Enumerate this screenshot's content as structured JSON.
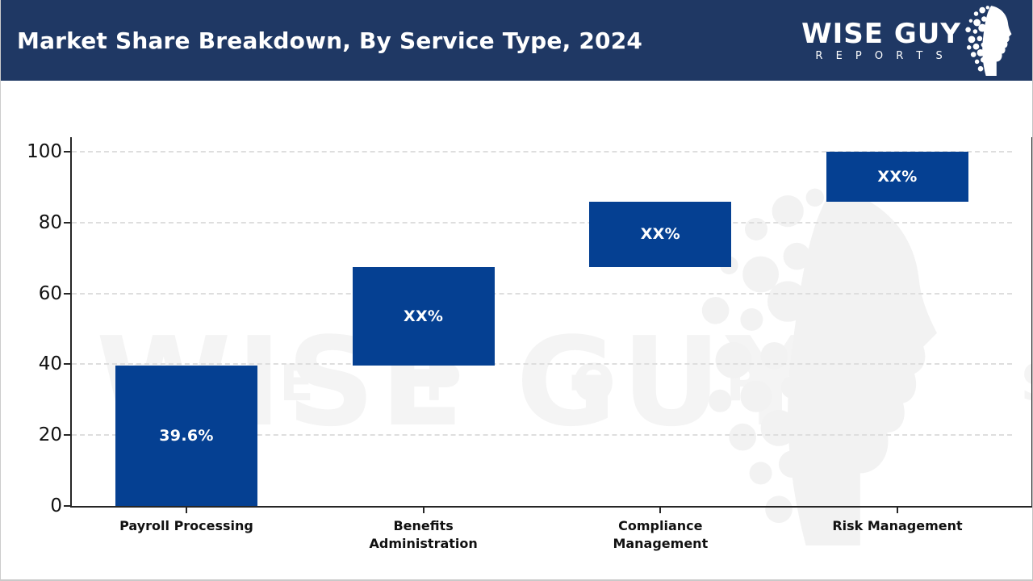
{
  "header": {
    "title": "Market Share Breakdown, By Service Type, 2024",
    "logo": {
      "wordmark": "WISE GUY",
      "subtext": "R E P O R T S"
    },
    "bg_color": "#1f3864"
  },
  "watermark": {
    "line1": "WISE GUY",
    "line2": "R E P O R T S"
  },
  "chart_data": {
    "type": "bar",
    "subtype": "waterfall",
    "title": "Market Share Breakdown, By Service Type, 2024",
    "categories": [
      "Payroll Processing",
      "Benefits Administration",
      "Compliance Management",
      "Risk Management"
    ],
    "category_lines": [
      [
        "Payroll Processing"
      ],
      [
        "Benefits",
        "Administration"
      ],
      [
        "Compliance",
        "Management"
      ],
      [
        "Risk Management"
      ]
    ],
    "segments": [
      {
        "category": "Payroll Processing",
        "start": 0,
        "end": 39.6,
        "label": "39.6%"
      },
      {
        "category": "Benefits Administration",
        "start": 39.6,
        "end": 67.5,
        "label": "XX%"
      },
      {
        "category": "Compliance Management",
        "start": 67.5,
        "end": 85.8,
        "label": "XX%"
      },
      {
        "category": "Risk Management",
        "start": 85.8,
        "end": 100,
        "label": "XX%"
      }
    ],
    "yticks": [
      0,
      20,
      40,
      60,
      80,
      100
    ],
    "ylim": [
      0,
      104
    ],
    "xlabel": "",
    "ylabel": "",
    "grid": "horizontal-dashed",
    "legend": "none",
    "bar_color": "#054092",
    "bar_label_color": "#ffffff",
    "grid_color": "#dedede",
    "axis_color": "#262626"
  }
}
